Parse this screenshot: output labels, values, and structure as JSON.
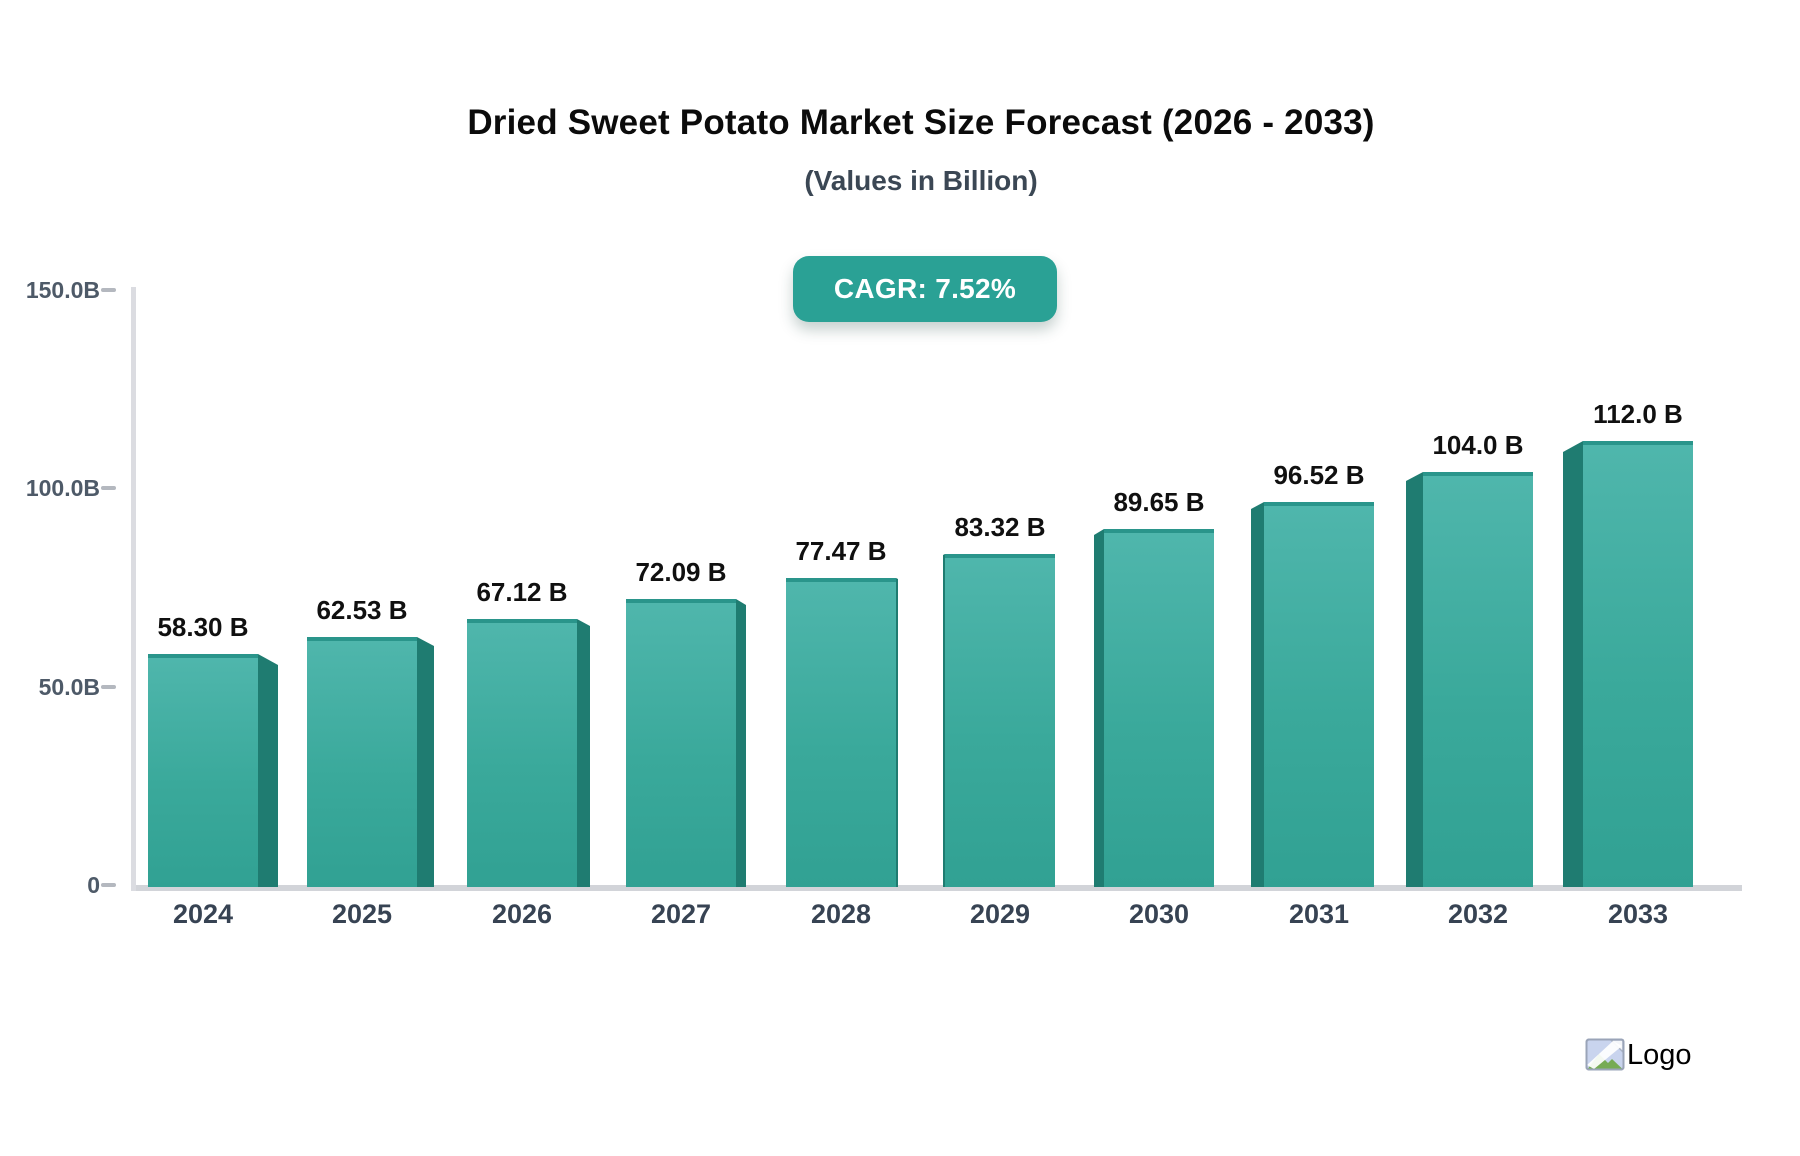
{
  "page": {
    "logo_alt": "Logo"
  },
  "chart_data": {
    "type": "bar",
    "title": "Dried Sweet Potato Market Size Forecast (2026 - 2033)",
    "subtitle": "(Values in Billion)",
    "cagr_label": "CAGR: 7.52%",
    "categories": [
      "2024",
      "2025",
      "2026",
      "2027",
      "2028",
      "2029",
      "2030",
      "2031",
      "2032",
      "2033"
    ],
    "values": [
      58.3,
      62.53,
      67.12,
      72.09,
      77.47,
      83.32,
      89.65,
      96.52,
      104.0,
      112.0
    ],
    "value_labels": [
      "58.30 B",
      "62.53 B",
      "67.12 B",
      "72.09 B",
      "77.47 B",
      "83.32 B",
      "89.65 B",
      "96.52 B",
      "104.0 B",
      "112.0 B"
    ],
    "xlabel": "",
    "ylabel": "",
    "ylim": [
      0,
      150
    ],
    "y_ticks": [
      {
        "label": "150.0B",
        "value": 150
      },
      {
        "label": "100.0B",
        "value": 100
      },
      {
        "label": "50.0B",
        "value": 50
      },
      {
        "label": "0",
        "value": 0
      }
    ],
    "grid": false,
    "legend": false,
    "colors": {
      "bar_face_top": "#4fb6ac",
      "bar_face_mid": "#3aa99b",
      "bar_face_bottom": "#31a193",
      "bar_top_border": "#2a958b",
      "bar_side": "#1f7c71",
      "badge": "#2aa195",
      "axis": "#d5d6db",
      "value_label": "#101010"
    }
  }
}
